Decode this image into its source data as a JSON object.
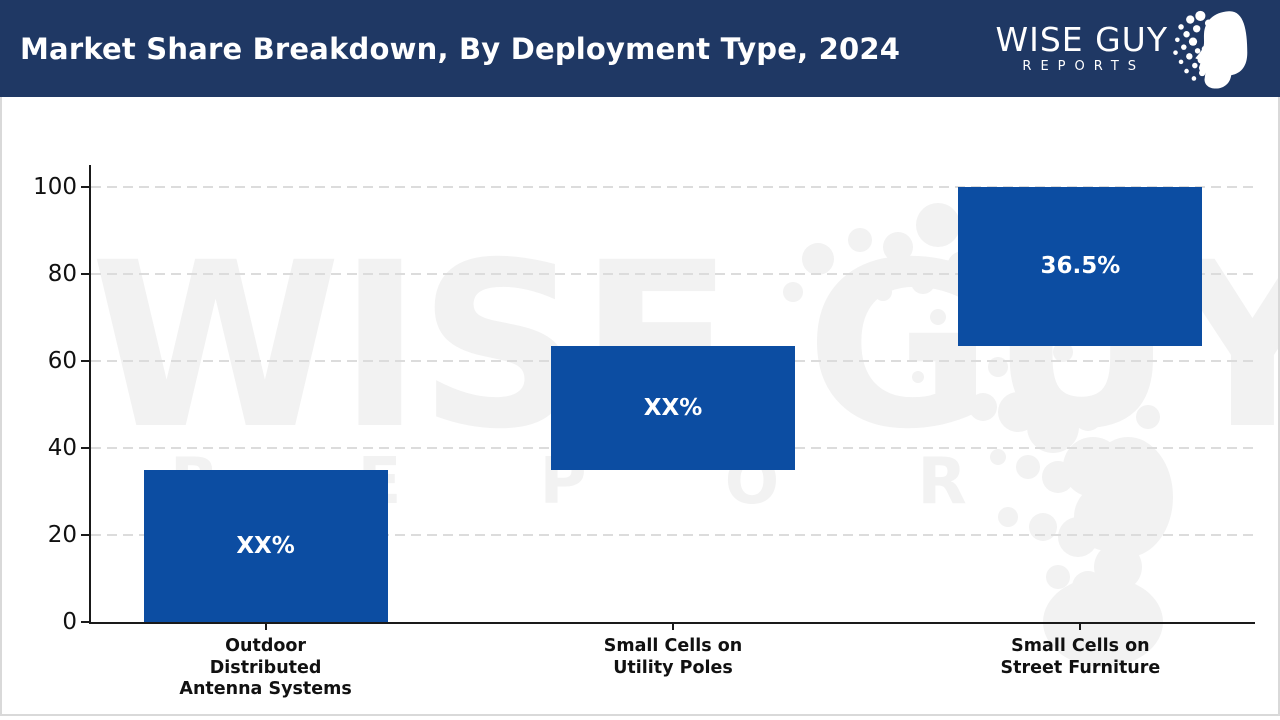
{
  "header": {
    "title": "Market Share Breakdown, By Deployment Type, 2024",
    "logo": {
      "name": "WISE GUY",
      "subtitle": "REPORTS"
    }
  },
  "watermark": {
    "wordmark": "WISE GUY",
    "subtitle": "R E P O R T S"
  },
  "chart_data": {
    "type": "bar",
    "subtype": "segmented-waterfall",
    "title": "Market Share Breakdown, By Deployment Type, 2024",
    "categories": [
      "Outdoor\nDistributed\nAntenna Systems",
      "Small Cells on\nUtility Poles",
      "Small Cells on\nStreet Furniture"
    ],
    "series": [
      {
        "name": "Market share (%)",
        "segments": [
          {
            "category": "Outdoor Distributed Antenna Systems",
            "start": 0,
            "end": 35,
            "label": "XX%"
          },
          {
            "category": "Small Cells on Utility Poles",
            "start": 35,
            "end": 63.5,
            "label": "XX%"
          },
          {
            "category": "Small Cells on Street Furniture",
            "start": 63.5,
            "end": 100,
            "label": "36.5%"
          }
        ]
      }
    ],
    "xlabel": "",
    "ylabel": "",
    "ylim": [
      0,
      105
    ],
    "yticks": [
      0,
      20,
      40,
      60,
      80,
      100
    ],
    "grid": "horizontal-dashed",
    "legend": "none",
    "bar_color": "#0c4da2",
    "bar_label_color": "#ffffff"
  },
  "colors": {
    "header_bg": "#1f3864",
    "title_text": "#ffffff",
    "bar": "#0c4da2",
    "axis": "#1a1a1a",
    "gridline": "#dcdcdc",
    "watermark": "#f2f2f2",
    "card_border": "#d9d9d9"
  }
}
